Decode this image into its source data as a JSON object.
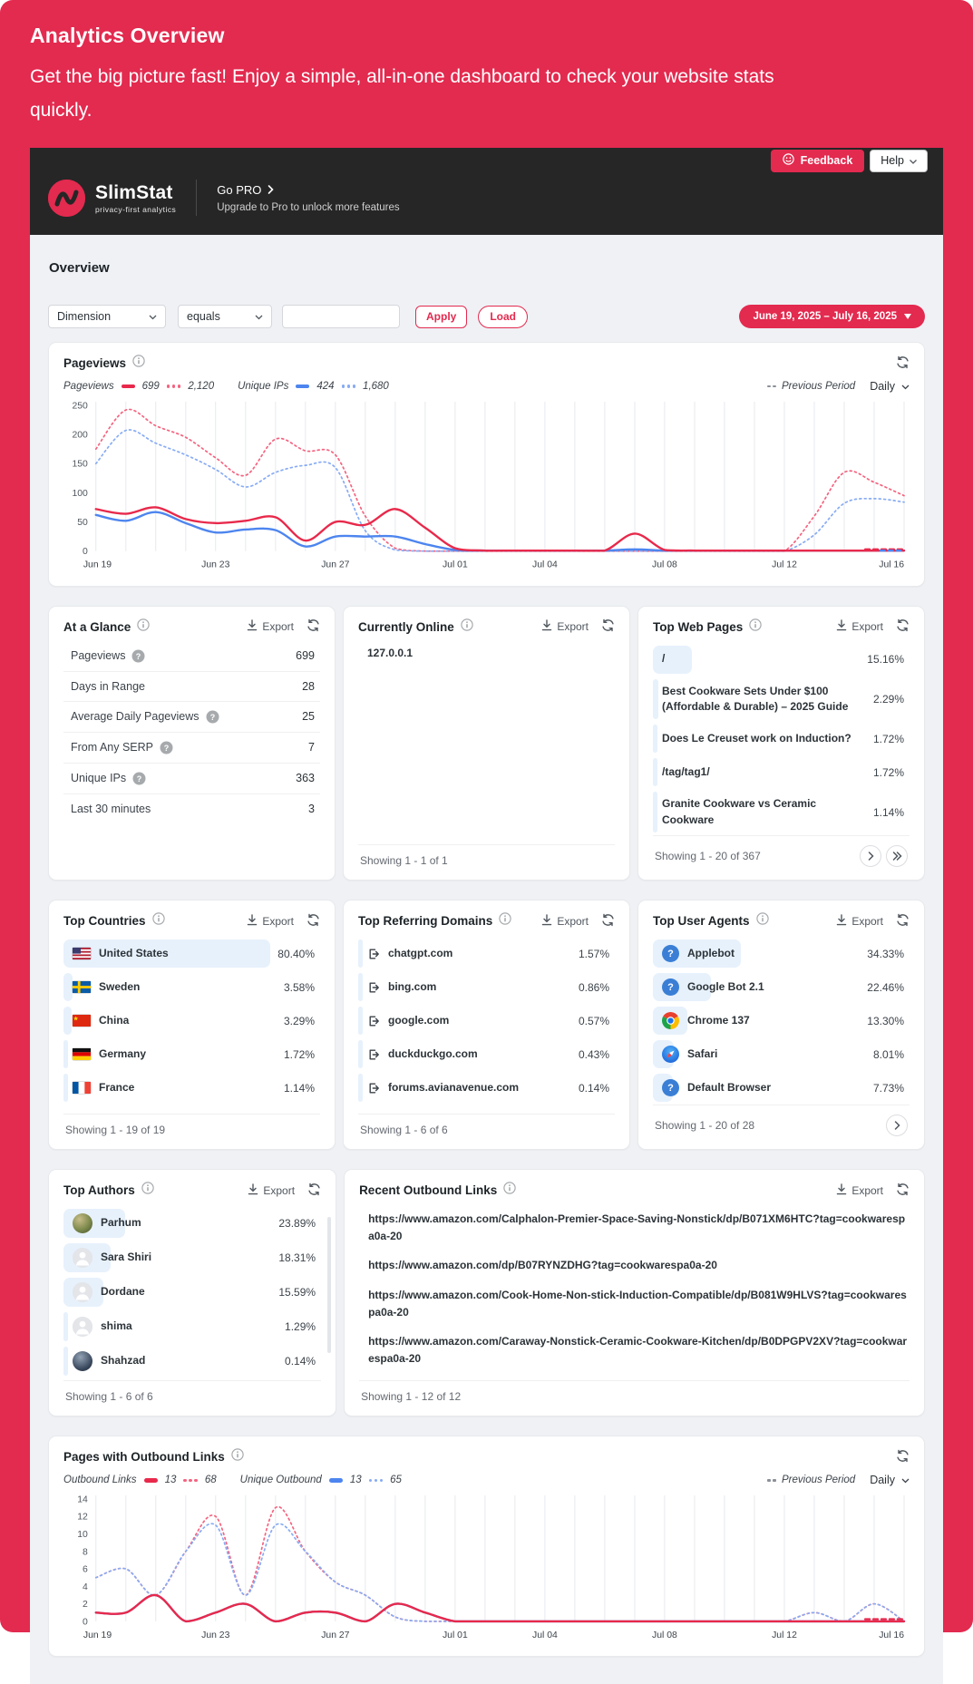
{
  "colors": {
    "accent": "#e32a4f",
    "red_line": "#e8294b",
    "red_dotted": "#f4637f",
    "blue_line": "#4d85ef",
    "blue_dotted": "#87abf4",
    "bar_highlight": "#e7f1fc",
    "topbar_bg": "#262626",
    "content_bg": "#eff1f5"
  },
  "page": {
    "title": "Analytics Overview",
    "subtitle": "Get the big picture fast! Enjoy a simple, all-in-one dashboard to check your website stats quickly."
  },
  "navbar": {
    "brand": "SlimStat",
    "brand_tagline": "privacy-first analytics",
    "go_pro": "Go PRO",
    "go_pro_sub": "Upgrade to Pro to unlock more features",
    "feedback": "Feedback",
    "help": "Help"
  },
  "toolbar": {
    "overview": "Overview",
    "dimension": "Dimension",
    "operator": "equals",
    "filter_value": "",
    "apply": "Apply",
    "load": "Load",
    "date_range": "June 19, 2025 – July 16, 2025"
  },
  "panels": {
    "pageviews_chart": {
      "title": "Pageviews",
      "legend": [
        {
          "label": "Pageviews",
          "current": "699",
          "previous": "2,120"
        },
        {
          "label": "Unique IPs",
          "current": "424",
          "previous": "1,680"
        }
      ],
      "previous_period": "Previous Period",
      "interval": "Daily"
    },
    "at_a_glance": {
      "title": "At a Glance",
      "export": "Export",
      "rows": [
        {
          "label": "Pageviews",
          "help": true,
          "value": "699"
        },
        {
          "label": "Days in Range",
          "help": false,
          "value": "28"
        },
        {
          "label": "Average Daily Pageviews",
          "help": true,
          "value": "25"
        },
        {
          "label": "From Any SERP",
          "help": true,
          "value": "7"
        },
        {
          "label": "Unique IPs",
          "help": true,
          "value": "363"
        },
        {
          "label": "Last 30 minutes",
          "help": false,
          "value": "3"
        }
      ]
    },
    "currently_online": {
      "title": "Currently Online",
      "export": "Export",
      "rows": [
        {
          "label": "127.0.0.1"
        }
      ],
      "footer": "Showing 1 - 1 of 1"
    },
    "top_web_pages": {
      "title": "Top Web Pages",
      "export": "Export",
      "rows": [
        {
          "label": "/",
          "pct": "15.16%",
          "interactable": true
        },
        {
          "label": "Best Cookware Sets Under $100 (Affordable & Durable) – 2025 Guide",
          "pct": "2.29%",
          "interactable": true
        },
        {
          "label": "Does Le Creuset work on Induction?",
          "pct": "1.72%",
          "interactable": true
        },
        {
          "label": "/tag/tag1/",
          "pct": "1.72%",
          "interactable": true
        },
        {
          "label": "Granite Cookware vs Ceramic Cookware",
          "pct": "1.14%",
          "interactable": true
        }
      ],
      "footer": "Showing 1 - 20 of 367",
      "pagination": [
        "next",
        "last"
      ]
    },
    "top_countries": {
      "title": "Top Countries",
      "export": "Export",
      "rows": [
        {
          "label": "United States",
          "pct": "80.40%",
          "icon": "flag-us"
        },
        {
          "label": "Sweden",
          "pct": "3.58%",
          "icon": "flag-se"
        },
        {
          "label": "China",
          "pct": "3.29%",
          "icon": "flag-cn"
        },
        {
          "label": "Germany",
          "pct": "1.72%",
          "icon": "flag-de"
        },
        {
          "label": "France",
          "pct": "1.14%",
          "icon": "flag-fr"
        }
      ],
      "footer": "Showing 1 - 19 of 19"
    },
    "top_referring_domains": {
      "title": "Top Referring Domains",
      "export": "Export",
      "rows": [
        {
          "label": "chatgpt.com",
          "pct": "1.57%",
          "icon": "link-out",
          "interactable": true
        },
        {
          "label": "bing.com",
          "pct": "0.86%",
          "icon": "link-out",
          "interactable": true
        },
        {
          "label": "google.com",
          "pct": "0.57%",
          "icon": "link-out",
          "interactable": true
        },
        {
          "label": "duckduckgo.com",
          "pct": "0.43%",
          "icon": "link-out",
          "interactable": true
        },
        {
          "label": "forums.avianavenue.com",
          "pct": "0.14%",
          "icon": "link-out",
          "interactable": true
        }
      ],
      "footer": "Showing 1 - 6 of 6"
    },
    "top_user_agents": {
      "title": "Top User Agents",
      "export": "Export",
      "rows": [
        {
          "label": "Applebot",
          "pct": "34.33%",
          "icon": "ua-question"
        },
        {
          "label": "Google Bot 2.1",
          "pct": "22.46%",
          "icon": "ua-question"
        },
        {
          "label": "Chrome 137",
          "pct": "13.30%",
          "icon": "chrome"
        },
        {
          "label": "Safari",
          "pct": "8.01%",
          "icon": "safari"
        },
        {
          "label": "Default Browser",
          "pct": "7.73%",
          "icon": "ua-question"
        }
      ],
      "footer": "Showing 1 - 20 of 28",
      "pagination": [
        "next"
      ]
    },
    "top_authors": {
      "title": "Top Authors",
      "export": "Export",
      "rows": [
        {
          "label": "Parhum",
          "pct": "23.89%",
          "icon": "avatar-photo-green"
        },
        {
          "label": "Sara Shiri",
          "pct": "18.31%",
          "icon": "avatar-person"
        },
        {
          "label": "Dordane",
          "pct": "15.59%",
          "icon": "avatar-person"
        },
        {
          "label": "shima",
          "pct": "1.29%",
          "icon": "avatar-person"
        },
        {
          "label": "Shahzad",
          "pct": "0.14%",
          "icon": "avatar-photo-dark"
        }
      ],
      "footer": "Showing 1 - 6 of 6"
    },
    "recent_outbound_links": {
      "title": "Recent Outbound Links",
      "export": "Export",
      "links": [
        "https://www.amazon.com/Calphalon-Premier-Space-Saving-Nonstick/dp/B071XM6HTC?tag=cookwarespa0a-20",
        "https://www.amazon.com/dp/B07RYNZDHG?tag=cookwarespa0a-20",
        "https://www.amazon.com/Cook-Home-Non-stick-Induction-Compatible/dp/B081W9HLVS?tag=cookwarespa0a-20",
        "https://www.amazon.com/Caraway-Nonstick-Ceramic-Cookware-Kitchen/dp/B0DPGPV2XV?tag=cookwarespa0a-20"
      ],
      "footer": "Showing 1 - 12 of 12"
    },
    "outbound_chart": {
      "title": "Pages with Outbound Links",
      "legend": [
        {
          "label": "Outbound Links",
          "current": "13",
          "previous": "68"
        },
        {
          "label": "Unique Outbound",
          "current": "13",
          "previous": "65"
        }
      ],
      "previous_period": "Previous Period",
      "interval": "Daily"
    }
  },
  "chart_data": [
    {
      "type": "line",
      "title": "Pageviews",
      "height": 196,
      "x": [
        "Jun 19",
        "Jun 20",
        "Jun 21",
        "Jun 22",
        "Jun 23",
        "Jun 24",
        "Jun 25",
        "Jun 26",
        "Jun 27",
        "Jun 28",
        "Jun 29",
        "Jun 30",
        "Jul 01",
        "Jul 02",
        "Jul 03",
        "Jul 04",
        "Jul 05",
        "Jul 06",
        "Jul 07",
        "Jul 08",
        "Jul 09",
        "Jul 10",
        "Jul 11",
        "Jul 12",
        "Jul 13",
        "Jul 14",
        "Jul 15",
        "Jul 16"
      ],
      "x_tick_indices": [
        0,
        4,
        8,
        12,
        15,
        19,
        23,
        27
      ],
      "x_tick_labels": [
        "Jun 19",
        "Jun 23",
        "Jun 27",
        "Jul 01",
        "Jul 04",
        "Jul 08",
        "Jul 12",
        "Jul 16"
      ],
      "ylim": [
        0,
        250
      ],
      "yticks": [
        0,
        50,
        100,
        150,
        200,
        250
      ],
      "grid": "vertical",
      "series": [
        {
          "name": "Pageviews (previous period)",
          "style": "dotted",
          "color": "#f4637f",
          "values": [
            175,
            242,
            215,
            195,
            160,
            130,
            192,
            172,
            165,
            60,
            5,
            0,
            0,
            0,
            0,
            0,
            0,
            0,
            0,
            0,
            0,
            0,
            0,
            0,
            60,
            135,
            118,
            95
          ]
        },
        {
          "name": "Unique IPs (previous period)",
          "style": "dotted",
          "color": "#87abf4",
          "values": [
            150,
            207,
            185,
            165,
            140,
            110,
            135,
            147,
            143,
            35,
            2,
            0,
            0,
            0,
            0,
            0,
            0,
            0,
            0,
            0,
            0,
            0,
            0,
            0,
            28,
            82,
            90,
            84
          ]
        },
        {
          "name": "Unique IPs",
          "style": "solid",
          "color": "#4d85ef",
          "values": [
            62,
            52,
            67,
            48,
            32,
            37,
            36,
            8,
            25,
            25,
            25,
            12,
            2,
            1,
            1,
            1,
            1,
            1,
            3,
            1,
            1,
            1,
            1,
            1,
            1,
            1,
            1,
            1
          ]
        },
        {
          "name": "Pageviews",
          "style": "solid",
          "color": "#e8294b",
          "values": [
            72,
            64,
            75,
            55,
            48,
            52,
            58,
            18,
            50,
            45,
            72,
            40,
            5,
            1,
            1,
            1,
            1,
            1,
            30,
            2,
            1,
            1,
            1,
            1,
            1,
            1,
            1,
            1
          ]
        }
      ],
      "end_stubs": [
        {
          "color": "#e8294b",
          "from": 25.7,
          "to": 27,
          "value": 3
        },
        {
          "color": "#4d85ef",
          "from": 26.2,
          "to": 27,
          "value": 1
        }
      ]
    },
    {
      "type": "line",
      "title": "Pages with Outbound Links",
      "height": 170,
      "x": [
        "Jun 19",
        "Jun 20",
        "Jun 21",
        "Jun 22",
        "Jun 23",
        "Jun 24",
        "Jun 25",
        "Jun 26",
        "Jun 27",
        "Jun 28",
        "Jun 29",
        "Jun 30",
        "Jul 01",
        "Jul 02",
        "Jul 03",
        "Jul 04",
        "Jul 05",
        "Jul 06",
        "Jul 07",
        "Jul 08",
        "Jul 09",
        "Jul 10",
        "Jul 11",
        "Jul 12",
        "Jul 13",
        "Jul 14",
        "Jul 15",
        "Jul 16"
      ],
      "x_tick_indices": [
        0,
        4,
        8,
        12,
        15,
        19,
        23,
        27
      ],
      "x_tick_labels": [
        "Jun 19",
        "Jun 23",
        "Jun 27",
        "Jul 01",
        "Jul 04",
        "Jul 08",
        "Jul 12",
        "Jul 16"
      ],
      "ylim": [
        0,
        14
      ],
      "yticks": [
        0,
        2,
        4,
        6,
        8,
        10,
        12,
        14
      ],
      "grid": "vertical",
      "series": [
        {
          "name": "Outbound Links (previous period)",
          "style": "dotted",
          "color": "#f4637f",
          "values": [
            5,
            6,
            3,
            8,
            12,
            3,
            13,
            8,
            4.5,
            3,
            0.5,
            0,
            0,
            0,
            0,
            0,
            0,
            0,
            0,
            0,
            0,
            0,
            0,
            0,
            1,
            0,
            2,
            0
          ]
        },
        {
          "name": "Unique Outbound (previous period)",
          "style": "dotted",
          "color": "#87abf4",
          "values": [
            5,
            6,
            3,
            8,
            11,
            3,
            11,
            8,
            4.5,
            3,
            0.5,
            0,
            0,
            0,
            0,
            0,
            0,
            0,
            0,
            0,
            0,
            0,
            0,
            0,
            1,
            0,
            2,
            0
          ]
        },
        {
          "name": "Unique Outbound",
          "style": "solid",
          "color": "#4d85ef",
          "values": [
            1,
            1,
            3,
            0,
            1,
            2,
            0,
            1,
            1,
            0,
            2,
            1,
            0,
            0,
            0,
            0,
            0,
            0,
            0,
            0,
            0,
            0,
            0,
            0,
            0,
            0,
            0,
            0
          ]
        },
        {
          "name": "Outbound Links",
          "style": "solid",
          "color": "#e8294b",
          "values": [
            1,
            1,
            3,
            0,
            1,
            2,
            0,
            1,
            1,
            0,
            2,
            1,
            0,
            0,
            0,
            0,
            0,
            0,
            0,
            0,
            0,
            0,
            0,
            0,
            0,
            0,
            0,
            0
          ]
        }
      ],
      "end_stubs": [
        {
          "color": "#e8294b",
          "from": 25.7,
          "to": 27,
          "value": 0.25
        }
      ]
    }
  ]
}
